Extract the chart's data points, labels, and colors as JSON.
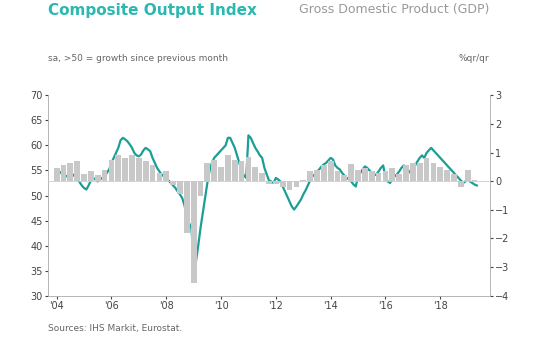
{
  "title_left": "Composite Output Index",
  "title_right": "Gross Domestic Product (GDP)",
  "subtitle_left": "sa, >50 = growth since previous month",
  "subtitle_right": "%qr/qr",
  "source": "Sources: IHS Markit, Eurostat.",
  "left_ylim": [
    30,
    70
  ],
  "right_ylim": [
    -4,
    3
  ],
  "left_yticks": [
    30,
    35,
    40,
    45,
    50,
    55,
    60,
    65,
    70
  ],
  "right_yticks": [
    -4,
    -3,
    -2,
    -1,
    0,
    1,
    2,
    3
  ],
  "xtick_labels": [
    "'04",
    "'06",
    "'08",
    "'10",
    "'12",
    "'14",
    "'16",
    "'18"
  ],
  "xtick_positions": [
    2004,
    2006,
    2008,
    2010,
    2012,
    2014,
    2016,
    2018
  ],
  "xlim": [
    2003.7,
    2019.8
  ],
  "line_color": "#1a9e96",
  "bar_color": "#c8c8c8",
  "title_left_color": "#2ab8b0",
  "title_right_color": "#999999",
  "subtitle_color": "#666666",
  "source_color": "#666666",
  "bg_color": "#ffffff",
  "spine_color": "#aaaaaa",
  "composite_x": [
    2004.0,
    2004.083,
    2004.167,
    2004.25,
    2004.333,
    2004.417,
    2004.5,
    2004.583,
    2004.667,
    2004.75,
    2004.833,
    2004.917,
    2005.0,
    2005.083,
    2005.167,
    2005.25,
    2005.333,
    2005.417,
    2005.5,
    2005.583,
    2005.667,
    2005.75,
    2005.833,
    2005.917,
    2006.0,
    2006.083,
    2006.167,
    2006.25,
    2006.333,
    2006.417,
    2006.5,
    2006.583,
    2006.667,
    2006.75,
    2006.833,
    2006.917,
    2007.0,
    2007.083,
    2007.167,
    2007.25,
    2007.333,
    2007.417,
    2007.5,
    2007.583,
    2007.667,
    2007.75,
    2007.833,
    2007.917,
    2008.0,
    2008.083,
    2008.167,
    2008.25,
    2008.333,
    2008.417,
    2008.5,
    2008.583,
    2008.667,
    2008.75,
    2008.833,
    2008.917,
    2009.0,
    2009.083,
    2009.167,
    2009.25,
    2009.333,
    2009.417,
    2009.5,
    2009.583,
    2009.667,
    2009.75,
    2009.833,
    2009.917,
    2010.0,
    2010.083,
    2010.167,
    2010.25,
    2010.333,
    2010.417,
    2010.5,
    2010.583,
    2010.667,
    2010.75,
    2010.833,
    2010.917,
    2011.0,
    2011.083,
    2011.167,
    2011.25,
    2011.333,
    2011.417,
    2011.5,
    2011.583,
    2011.667,
    2011.75,
    2011.833,
    2011.917,
    2012.0,
    2012.083,
    2012.167,
    2012.25,
    2012.333,
    2012.417,
    2012.5,
    2012.583,
    2012.667,
    2012.75,
    2012.833,
    2012.917,
    2013.0,
    2013.083,
    2013.167,
    2013.25,
    2013.333,
    2013.417,
    2013.5,
    2013.583,
    2013.667,
    2013.75,
    2013.833,
    2013.917,
    2014.0,
    2014.083,
    2014.167,
    2014.25,
    2014.333,
    2014.417,
    2014.5,
    2014.583,
    2014.667,
    2014.75,
    2014.833,
    2014.917,
    2015.0,
    2015.083,
    2015.167,
    2015.25,
    2015.333,
    2015.417,
    2015.5,
    2015.583,
    2015.667,
    2015.75,
    2015.833,
    2015.917,
    2016.0,
    2016.083,
    2016.167,
    2016.25,
    2016.333,
    2016.417,
    2016.5,
    2016.583,
    2016.667,
    2016.75,
    2016.833,
    2016.917,
    2017.0,
    2017.083,
    2017.167,
    2017.25,
    2017.333,
    2017.417,
    2017.5,
    2017.583,
    2017.667,
    2017.75,
    2017.833,
    2017.917,
    2018.0,
    2018.083,
    2018.167,
    2018.25,
    2018.333,
    2018.417,
    2018.5,
    2018.583,
    2018.667,
    2018.75,
    2018.833,
    2018.917,
    2019.0,
    2019.083,
    2019.167,
    2019.25,
    2019.333
  ],
  "composite_y": [
    55.2,
    54.8,
    54.5,
    54.0,
    53.8,
    54.0,
    54.5,
    54.2,
    53.8,
    53.2,
    52.7,
    52.0,
    51.5,
    51.2,
    52.0,
    53.0,
    53.5,
    53.2,
    52.8,
    53.2,
    53.5,
    54.0,
    54.5,
    55.2,
    56.5,
    57.5,
    58.5,
    59.5,
    61.0,
    61.5,
    61.2,
    60.8,
    60.2,
    59.5,
    58.5,
    58.0,
    57.8,
    58.2,
    59.0,
    59.5,
    59.2,
    58.8,
    57.5,
    56.5,
    55.5,
    54.8,
    54.2,
    53.8,
    53.5,
    53.0,
    52.5,
    52.0,
    51.5,
    50.8,
    50.2,
    49.5,
    48.0,
    46.0,
    44.5,
    43.5,
    37.2,
    36.8,
    40.0,
    43.5,
    46.5,
    49.5,
    52.5,
    55.0,
    56.5,
    57.5,
    58.0,
    58.5,
    59.0,
    59.5,
    60.0,
    61.5,
    61.5,
    60.5,
    59.5,
    58.0,
    56.5,
    55.0,
    54.0,
    53.5,
    62.0,
    61.5,
    60.5,
    59.5,
    58.8,
    58.0,
    57.5,
    55.5,
    54.2,
    53.0,
    52.8,
    52.5,
    53.5,
    53.2,
    52.8,
    51.8,
    50.8,
    49.8,
    48.8,
    47.8,
    47.2,
    47.8,
    48.5,
    49.2,
    50.2,
    51.0,
    52.0,
    53.0,
    53.8,
    54.2,
    54.8,
    55.2,
    55.8,
    56.2,
    56.5,
    57.0,
    57.5,
    57.2,
    56.0,
    55.5,
    55.2,
    54.5,
    54.0,
    53.5,
    53.2,
    52.8,
    52.2,
    51.8,
    53.8,
    54.5,
    55.2,
    55.8,
    55.5,
    55.0,
    54.5,
    54.0,
    54.2,
    54.8,
    55.5,
    56.0,
    53.5,
    52.8,
    52.5,
    53.2,
    53.8,
    54.2,
    54.8,
    55.5,
    56.0,
    55.5,
    55.0,
    54.5,
    55.5,
    56.0,
    56.8,
    57.5,
    58.0,
    57.5,
    58.5,
    59.0,
    59.5,
    59.0,
    58.5,
    58.0,
    57.5,
    57.0,
    56.5,
    56.0,
    55.5,
    55.0,
    54.5,
    54.0,
    53.5,
    53.0,
    52.5,
    52.8,
    53.5,
    52.8,
    52.5,
    52.2,
    52.0
  ],
  "gdp_x": [
    2004.0,
    2004.25,
    2004.5,
    2004.75,
    2005.0,
    2005.25,
    2005.5,
    2005.75,
    2006.0,
    2006.25,
    2006.5,
    2006.75,
    2007.0,
    2007.25,
    2007.5,
    2007.75,
    2008.0,
    2008.25,
    2008.5,
    2008.75,
    2009.0,
    2009.25,
    2009.5,
    2009.75,
    2010.0,
    2010.25,
    2010.5,
    2010.75,
    2011.0,
    2011.25,
    2011.5,
    2011.75,
    2012.0,
    2012.25,
    2012.5,
    2012.75,
    2013.0,
    2013.25,
    2013.5,
    2013.75,
    2014.0,
    2014.25,
    2014.5,
    2014.75,
    2015.0,
    2015.25,
    2015.5,
    2015.75,
    2016.0,
    2016.25,
    2016.5,
    2016.75,
    2017.0,
    2017.25,
    2017.5,
    2017.75,
    2018.0,
    2018.25,
    2018.5,
    2018.75,
    2019.0,
    2019.25
  ],
  "gdp_y": [
    0.45,
    0.55,
    0.65,
    0.7,
    0.25,
    0.35,
    0.2,
    0.4,
    0.75,
    0.9,
    0.8,
    0.9,
    0.8,
    0.7,
    0.55,
    0.3,
    0.35,
    -0.15,
    -0.45,
    -1.8,
    -3.55,
    -0.5,
    0.65,
    0.75,
    0.5,
    0.9,
    0.75,
    0.7,
    0.85,
    0.5,
    0.3,
    -0.1,
    -0.1,
    -0.2,
    -0.3,
    -0.2,
    0.05,
    0.35,
    0.4,
    0.55,
    0.7,
    0.35,
    0.2,
    0.6,
    0.4,
    0.45,
    0.35,
    0.3,
    0.35,
    0.45,
    0.25,
    0.55,
    0.65,
    0.65,
    0.8,
    0.65,
    0.5,
    0.4,
    0.25,
    -0.2,
    0.4,
    0.05
  ]
}
